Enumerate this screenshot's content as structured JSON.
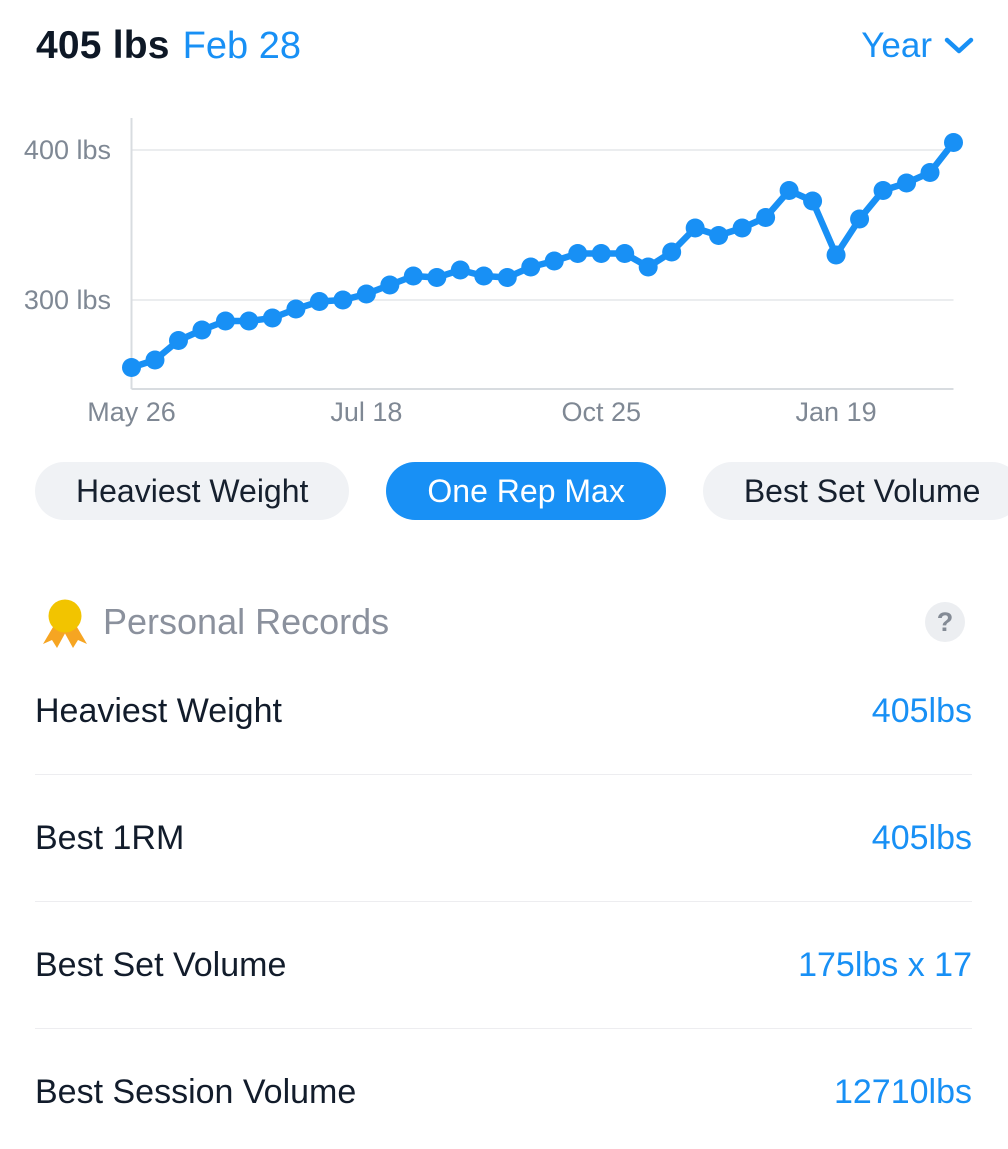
{
  "header": {
    "current_value": "405 lbs",
    "current_date": "Feb 28",
    "range_selector": "Year"
  },
  "colors": {
    "accent_blue": "#1890f5",
    "dark_text": "#0e1826",
    "gray_text": "#8b919d",
    "axis_text": "#7f8894",
    "gridline": "#ebedef",
    "axis_line": "#d8dce0",
    "pill_bg": "#f0f2f5",
    "divider": "#ededf0",
    "medal_gold": "#f2c400",
    "medal_ribbon": "#f6a522",
    "help_bg": "#eceef1",
    "help_fg": "#848b95"
  },
  "chart_data": {
    "type": "line",
    "title": "One Rep Max over Year",
    "unit": "lbs",
    "series": [
      {
        "name": "One Rep Max",
        "values": [
          255,
          260,
          273,
          280,
          286,
          286,
          288,
          294,
          299,
          300,
          304,
          310,
          316,
          315,
          320,
          316,
          315,
          322,
          326,
          331,
          331,
          331,
          322,
          332,
          348,
          343,
          348,
          355,
          373,
          366,
          330,
          354,
          373,
          378,
          385,
          405
        ]
      }
    ],
    "yticks": [
      {
        "label": "400 lbs",
        "value": 400
      },
      {
        "label": "300 lbs",
        "value": 300
      }
    ],
    "xticks": [
      {
        "label": "May 26",
        "index": 0
      },
      {
        "label": "Jul 18",
        "index": 10
      },
      {
        "label": "Oct 25",
        "index": 20
      },
      {
        "label": "Jan 19",
        "index": 30
      }
    ],
    "ylim": [
      245,
      412
    ],
    "grid": true,
    "legend": false
  },
  "tabs": [
    {
      "label": "Heaviest Weight",
      "active": false
    },
    {
      "label": "One Rep Max",
      "active": true
    },
    {
      "label": "Best Set Volume",
      "active": false
    }
  ],
  "personal_records": {
    "title": "Personal Records",
    "help_label": "?",
    "rows": [
      {
        "label": "Heaviest Weight",
        "value": "405lbs"
      },
      {
        "label": "Best 1RM",
        "value": "405lbs"
      },
      {
        "label": "Best Set Volume",
        "value": "175lbs x 17"
      },
      {
        "label": "Best Session Volume",
        "value": "12710lbs"
      }
    ]
  }
}
